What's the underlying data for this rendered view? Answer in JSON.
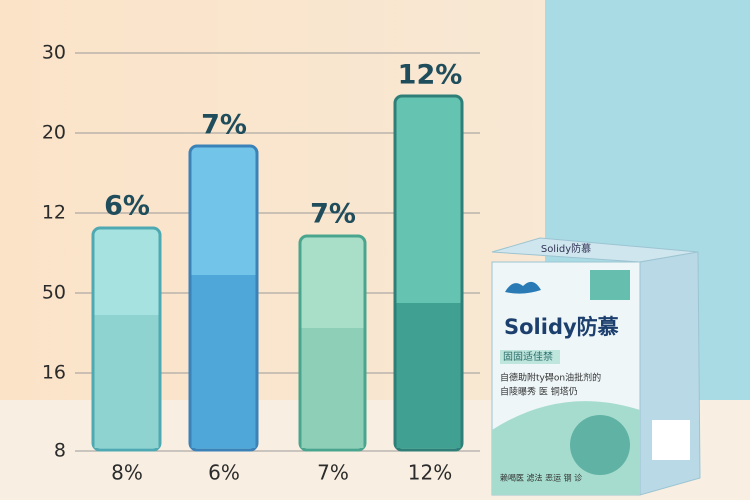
{
  "axis_labels": [
    "30",
    "20",
    "12",
    "50",
    "16",
    "8"
  ],
  "bars": [
    {
      "label": "6%",
      "category": "8%"
    },
    {
      "label": "7%",
      "category": "6%"
    },
    {
      "label": "7%",
      "category": "7%"
    },
    {
      "label": "12%",
      "category": "12%"
    }
  ],
  "product": {
    "brand": "Solidy防慕",
    "top_text": "Solidy防慕",
    "tag": "固固适佳禁",
    "line1": "自德助附ty碍on油批剂的",
    "line2": "自陵曝秀 医 铜塔仍",
    "footer": "赖喝医 滤法 恶运 钢 诊"
  }
}
